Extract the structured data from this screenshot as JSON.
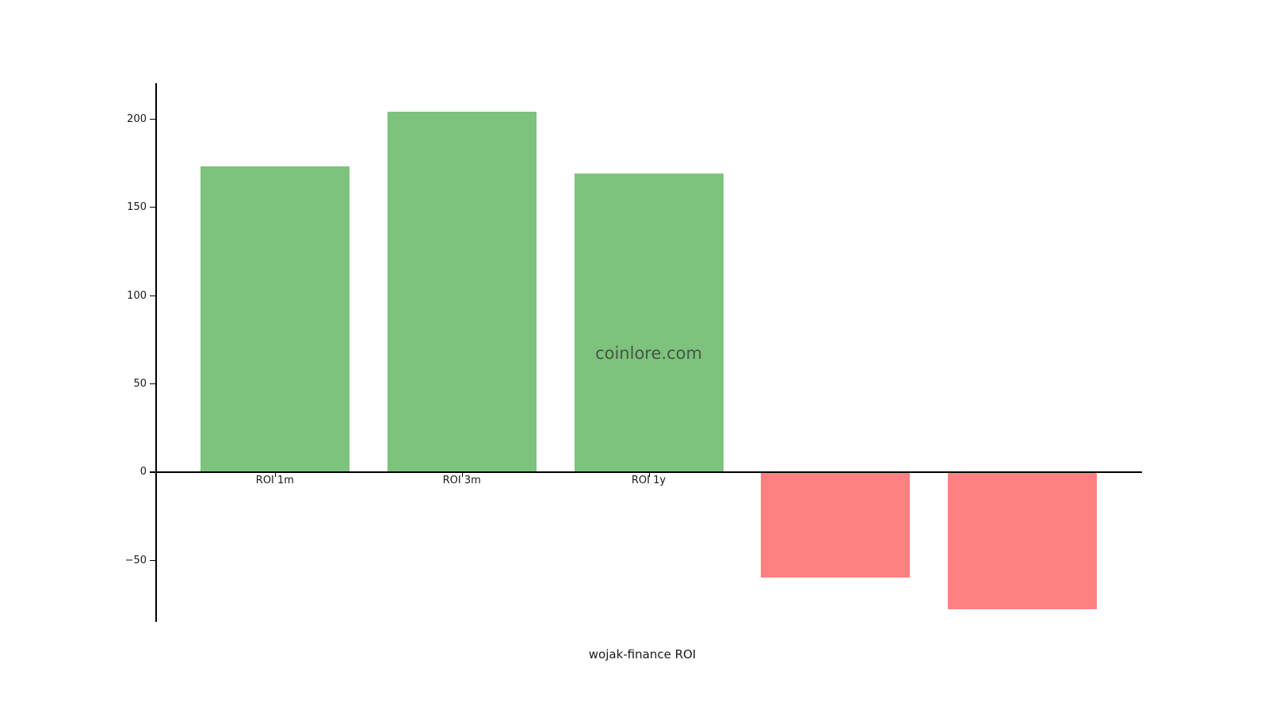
{
  "watermark": "coinlore.com",
  "chart_data": {
    "type": "bar",
    "title": "wojak-finance ROI",
    "categories": [
      "ROI 1m",
      "ROI 3m",
      "ROI 1y",
      "",
      ""
    ],
    "values": [
      173,
      204,
      169,
      -59,
      -77
    ],
    "yticks": [
      200,
      150,
      100,
      50,
      0,
      -50
    ],
    "ylim": [
      -85,
      220
    ],
    "xlabel": "",
    "ylabel": "",
    "grid": false,
    "legend": false,
    "colors": {
      "positive": "#7dc27d",
      "negative": "#fe8181",
      "axis": "#000000",
      "tick_text": "#1a1a1a",
      "watermark_text": "#3b443b",
      "background": "#ffffff"
    }
  }
}
